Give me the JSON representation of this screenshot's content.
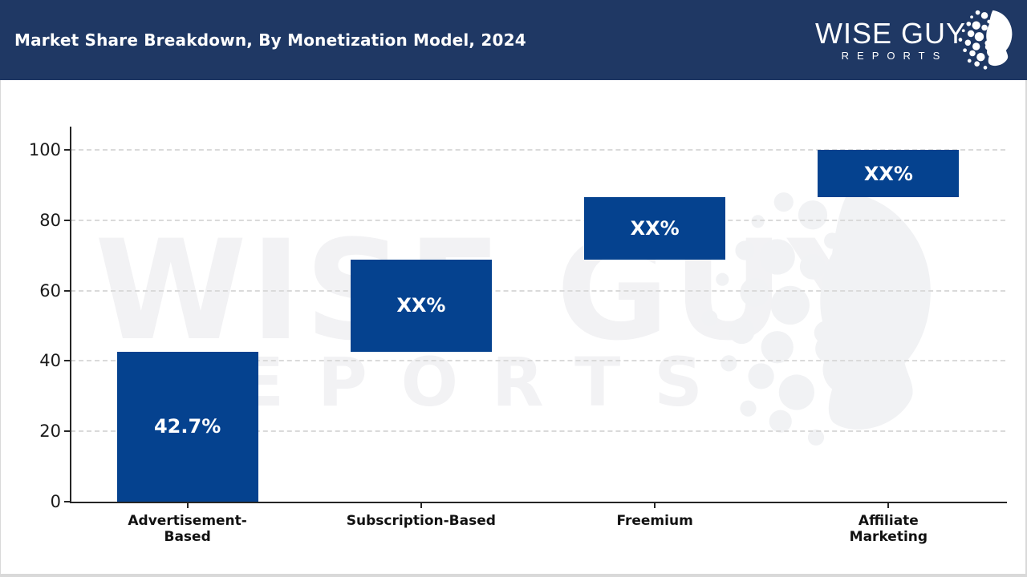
{
  "header": {
    "title": "Market Share Breakdown, By Monetization Model, 2024",
    "bg_color": "#1f3864",
    "logo": {
      "line1": "WISE GUY",
      "line2": "REPORTS"
    }
  },
  "watermark": {
    "line1": "WISE GUY",
    "line2": "REPORTS"
  },
  "chart_data": {
    "type": "bar",
    "subtype": "floating-waterfall",
    "title": "Market Share Breakdown, By Monetization Model, 2024",
    "categories": [
      "Advertisement-\nBased",
      "Subscription-Based",
      "Freemium",
      "Affiliate\nMarketing"
    ],
    "bars": [
      {
        "category": "Advertisement-Based",
        "start": 0,
        "end": 42.7,
        "label": "42.7%"
      },
      {
        "category": "Subscription-Based",
        "start": 42.7,
        "end": 68.8,
        "label": "XX%"
      },
      {
        "category": "Freemium",
        "start": 68.8,
        "end": 86.5,
        "label": "XX%"
      },
      {
        "category": "Affiliate Marketing",
        "start": 86.5,
        "end": 100,
        "label": "XX%"
      }
    ],
    "yticks": [
      0,
      20,
      40,
      60,
      80,
      100
    ],
    "ylim": [
      0,
      107
    ],
    "xlabel": "",
    "ylabel": "",
    "grid": true,
    "legend": false,
    "bar_color": "#05428f",
    "bar_label_color": "#ffffff",
    "axis_color": "#262626"
  }
}
